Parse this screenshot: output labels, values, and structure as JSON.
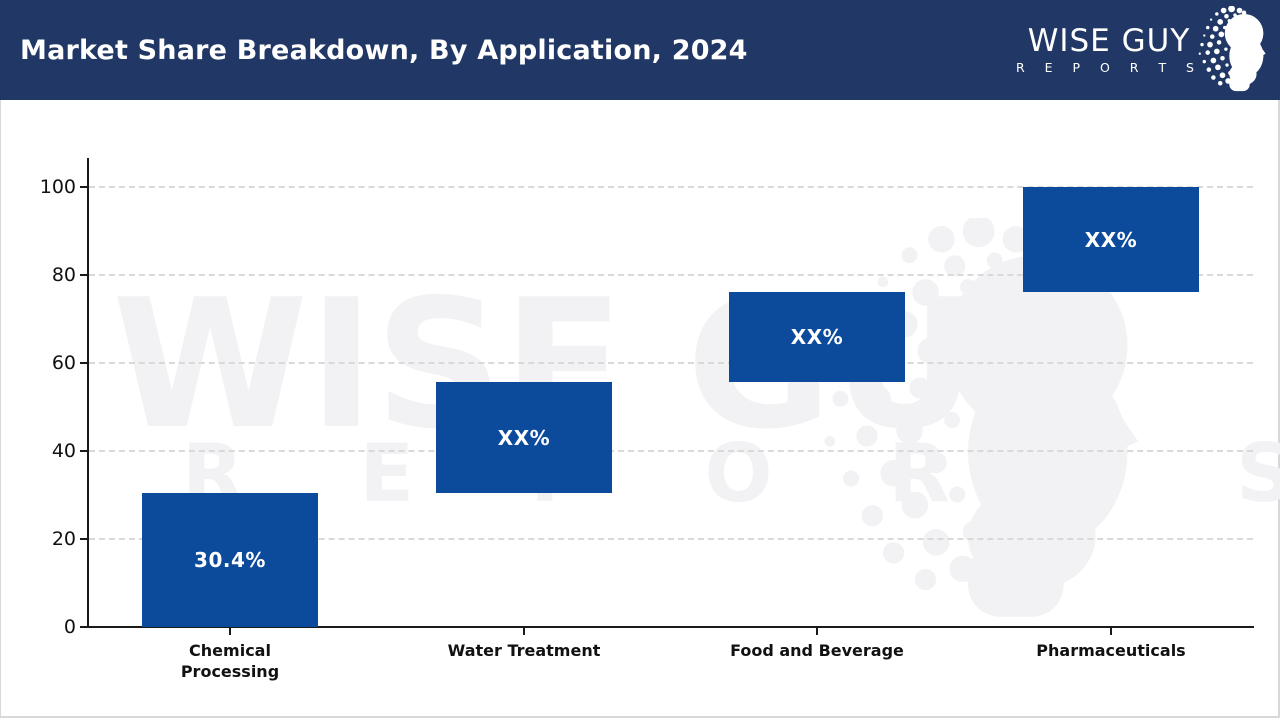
{
  "header": {
    "title": "Market Share Breakdown, By Application, 2024",
    "logo": {
      "name": "WISE GUY",
      "sub": "R E P O R T S",
      "face_icon": "dotted-head-profile"
    }
  },
  "watermark": {
    "line1": "WISE GUY",
    "line2": "R E P O R T S",
    "face_icon": "dotted-head-profile"
  },
  "chart_data": {
    "type": "bar",
    "subtype": "waterfall",
    "title": "Market Share Breakdown, By Application, 2024",
    "categories": [
      "Chemical\nProcessing",
      "Water Treatment",
      "Food and Beverage",
      "Pharmaceuticals"
    ],
    "segments": [
      {
        "category": "Chemical Processing",
        "start": 0,
        "end": 30.4,
        "value": 30.4,
        "value_label": "30.4%"
      },
      {
        "category": "Water Treatment",
        "start": 30.4,
        "end": 55.7,
        "value": 25.3,
        "value_label": "XX%"
      },
      {
        "category": "Food and Beverage",
        "start": 55.7,
        "end": 76.1,
        "value": 20.4,
        "value_label": "XX%"
      },
      {
        "category": "Pharmaceuticals",
        "start": 76.1,
        "end": 100,
        "value": 23.9,
        "value_label": "XX%"
      }
    ],
    "xlabel": "",
    "ylabel": "",
    "ylim": [
      0,
      100
    ],
    "y_ticks": [
      0,
      20,
      40,
      60,
      80,
      100
    ],
    "grid": "horizontal-dashed",
    "legend": "none"
  },
  "colors": {
    "header_bg": "#213866",
    "bar": "#0c4a9c",
    "bar_label": "#ffffff",
    "grid": "#d9d9d9",
    "axis": "#1a1a1a",
    "watermark": "#f2f2f4",
    "frame_border": "#d8d8d8"
  }
}
